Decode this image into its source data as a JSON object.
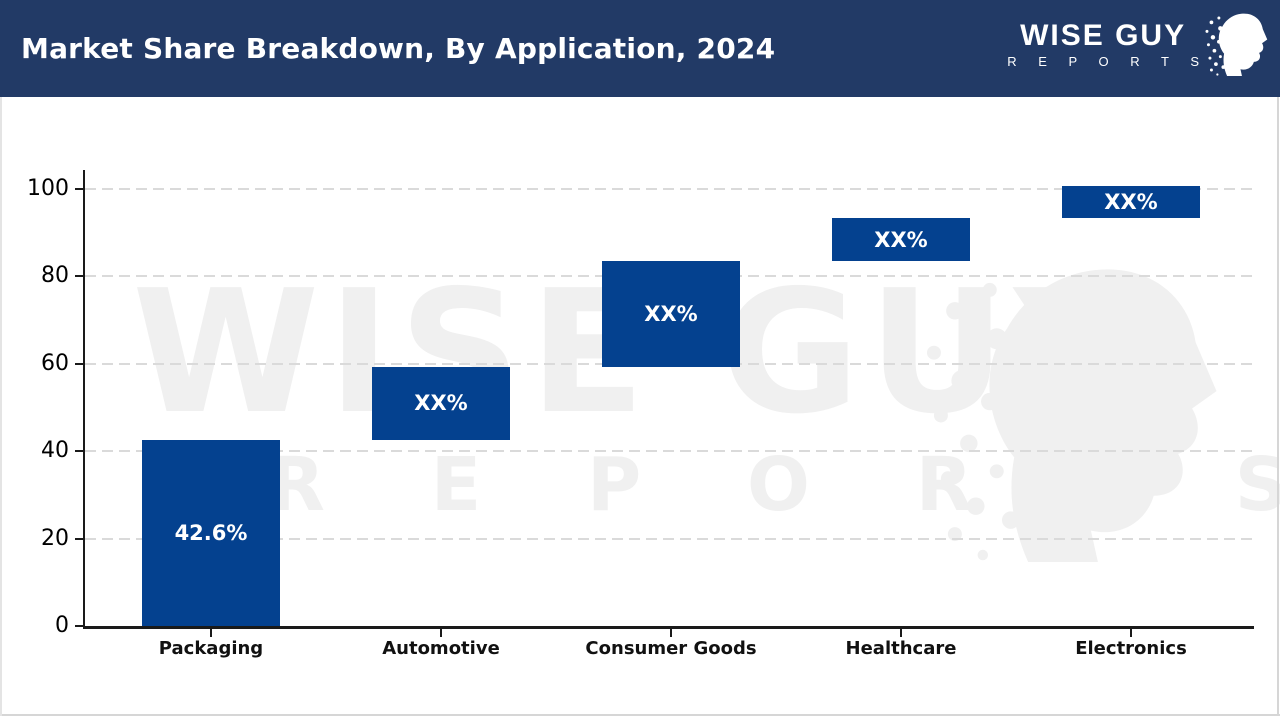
{
  "header": {
    "title": "Market Share Breakdown, By Application, 2024",
    "bg_color": "#223a66",
    "logo": {
      "line1": "WISE GUY",
      "line2": "R E P O R T S"
    }
  },
  "watermark": {
    "line1": "WISE GUY",
    "line2": "R E P O R T S"
  },
  "chart_data": {
    "type": "bar",
    "variant": "waterfall",
    "title": "Market Share Breakdown, By Application, 2024",
    "categories": [
      "Packaging",
      "Automotive",
      "Consumer Goods",
      "Healthcare",
      "Electronics"
    ],
    "segments": [
      {
        "category": "Packaging",
        "start": 0,
        "end": 42.6,
        "label": "42.6%"
      },
      {
        "category": "Automotive",
        "start": 42.6,
        "end": 59.2,
        "label": "XX%"
      },
      {
        "category": "Consumer Goods",
        "start": 59.2,
        "end": 83.4,
        "label": "XX%"
      },
      {
        "category": "Healthcare",
        "start": 83.4,
        "end": 93.2,
        "label": "XX%"
      },
      {
        "category": "Electronics",
        "start": 93.2,
        "end": 100.6,
        "label": "XX%"
      }
    ],
    "xlabel": "",
    "ylabel": "",
    "yticks": [
      0,
      20,
      40,
      60,
      80,
      100
    ],
    "ylim": [
      0,
      104
    ],
    "grid": "horizontal dashed",
    "legend": "none",
    "bar_color": "#04418f",
    "bar_label_color": "#ffffff",
    "axis_color": "#1a1a1a",
    "gridline_color": "#dadada"
  }
}
